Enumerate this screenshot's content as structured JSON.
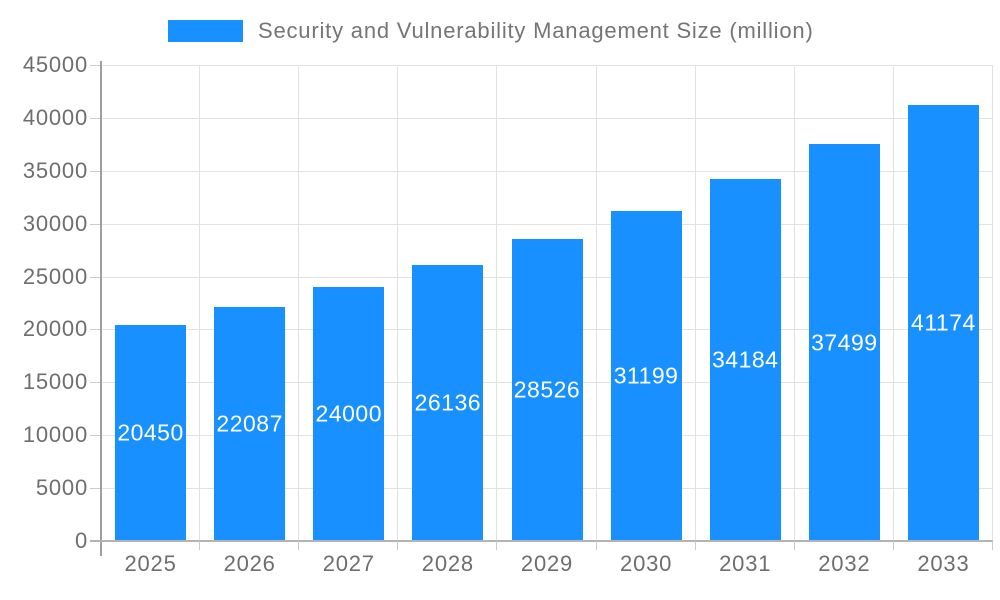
{
  "chart_data": {
    "type": "bar",
    "title": "Security and Vulnerability Management Size (million)",
    "legend": {
      "label": "Security and Vulnerability Management Size (million)",
      "position": "top"
    },
    "categories": [
      "2025",
      "2026",
      "2027",
      "2028",
      "2029",
      "2030",
      "2031",
      "2032",
      "2033"
    ],
    "values": [
      20450,
      22087,
      24000,
      26136,
      28526,
      31199,
      34184,
      37499,
      41174
    ],
    "bar_labels": [
      "20450",
      "22087",
      "24000",
      "26136",
      "28526",
      "31199",
      "34184",
      "37499",
      "41174"
    ],
    "xlabel": "",
    "ylabel": "",
    "ylim": [
      0,
      45000
    ],
    "y_ticks": [
      0,
      5000,
      10000,
      15000,
      20000,
      25000,
      30000,
      35000,
      40000,
      45000
    ],
    "y_tick_labels": [
      "0",
      "5000",
      "10000",
      "15000",
      "20000",
      "25000",
      "30000",
      "35000",
      "40000",
      "45000"
    ],
    "grid": true,
    "colors": {
      "bar": "#1890ff",
      "bar_label_text": "#ffffff",
      "axis_text": "#6e6e6e",
      "title_text": "#757575",
      "gridline": "#e2e2e2",
      "tick": "#cccccc",
      "y_axis_line": "#9e9e9e",
      "baseline": "#b3b3b3",
      "background": "#ffffff"
    }
  }
}
